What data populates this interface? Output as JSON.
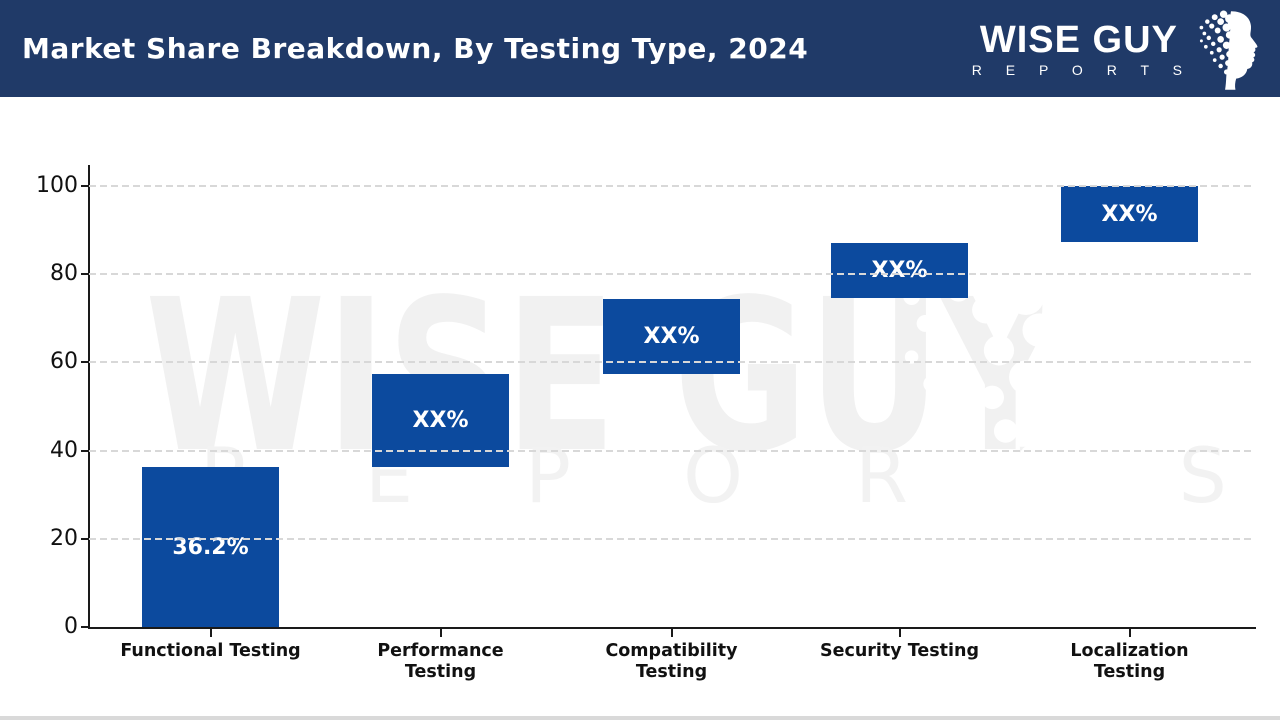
{
  "header": {
    "title": "Market Share Breakdown, By Testing Type, 2024",
    "bg_color": "#203a68",
    "logo": {
      "line1": "WISE GUY",
      "line2": "R E P O R T S"
    }
  },
  "watermark": {
    "line1": "WISE GUY",
    "line2": "R E P O R T S"
  },
  "chart_data": {
    "type": "bar",
    "variant": "waterfall",
    "title": "Market Share Breakdown, By Testing Type, 2024",
    "categories": [
      "Functional Testing",
      "Performance Testing",
      "Compatibility Testing",
      "Security Testing",
      "Localization Testing"
    ],
    "category_labels": [
      "Functional Testing",
      "Performance\nTesting",
      "Compatibility\nTesting",
      "Security Testing",
      "Localization\nTesting"
    ],
    "segments": [
      {
        "category": "Functional Testing",
        "start": 0,
        "end": 36.2,
        "label": "36.2%"
      },
      {
        "category": "Performance Testing",
        "start": 36.2,
        "end": 57.4,
        "label": "XX%"
      },
      {
        "category": "Compatibility Testing",
        "start": 57.4,
        "end": 74.4,
        "label": "XX%"
      },
      {
        "category": "Security Testing",
        "start": 74.5,
        "end": 87.1,
        "label": "XX%"
      },
      {
        "category": "Localization Testing",
        "start": 87.3,
        "end": 100,
        "label": "XX%"
      }
    ],
    "ylim": [
      0,
      100
    ],
    "yticks": [
      0,
      20,
      40,
      60,
      80,
      100
    ],
    "grid": {
      "horizontal": true,
      "style": "dashed",
      "color": "#d8d8d8"
    },
    "legend": "none",
    "bar_color": "#0c4a9e",
    "bar_label_color": "#ffffff",
    "axis_color": "#1a1a1a"
  }
}
